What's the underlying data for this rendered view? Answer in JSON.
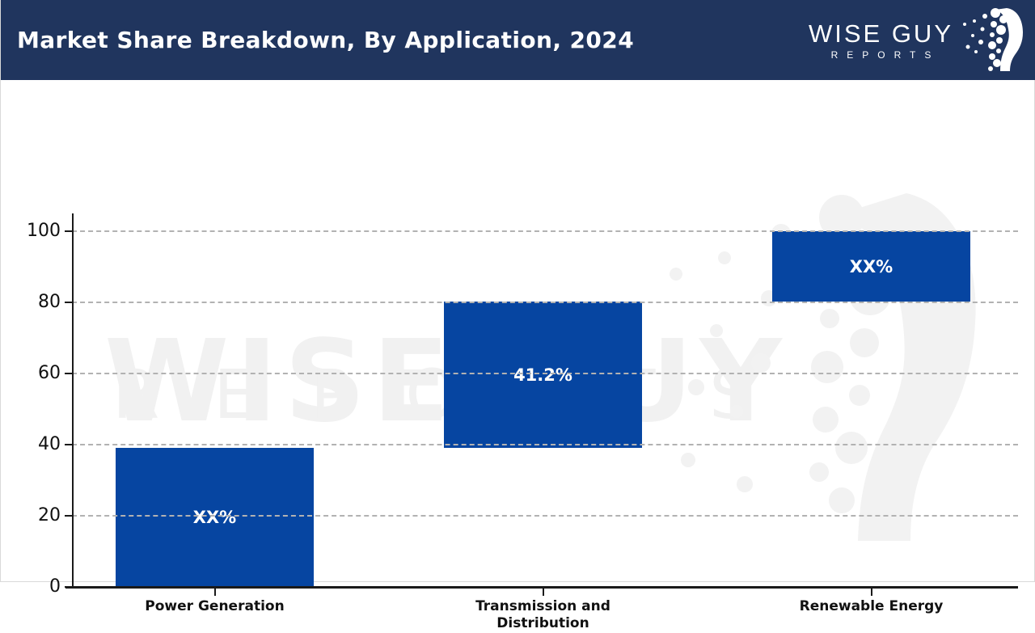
{
  "header": {
    "title": "Market Share Breakdown, By Application, 2024",
    "logo": {
      "line1": "WISE GUY",
      "line2": "REPORTS"
    }
  },
  "watermark": {
    "line1": "WISE GUY",
    "line2": "R E P O R T S"
  },
  "colors": {
    "header_bg": "#20355E",
    "bar": "#0645A1",
    "bar_label": "#FFFFFF",
    "gridline": "#B2B2B2",
    "axis": "#1A1A1A",
    "watermark": "#F1F1F1"
  },
  "chart_data": {
    "type": "bar",
    "subtype": "waterfall",
    "title": "Market Share Breakdown, By Application, 2024",
    "categories": [
      "Power Generation",
      "Transmission and Distribution",
      "Renewable Energy"
    ],
    "segments": [
      {
        "category": "Power Generation",
        "start": 0,
        "end": 39.0,
        "value_label": "XX%"
      },
      {
        "category": "Transmission and Distribution",
        "start": 39.0,
        "end": 80.2,
        "value_label": "41.2%"
      },
      {
        "category": "Renewable Energy",
        "start": 80.2,
        "end": 100.0,
        "value_label": "XX%"
      }
    ],
    "ylim": [
      0,
      100
    ],
    "yticks": [
      0,
      20,
      40,
      60,
      80,
      100
    ],
    "grid": "horizontal-dashed",
    "legend": "none"
  }
}
